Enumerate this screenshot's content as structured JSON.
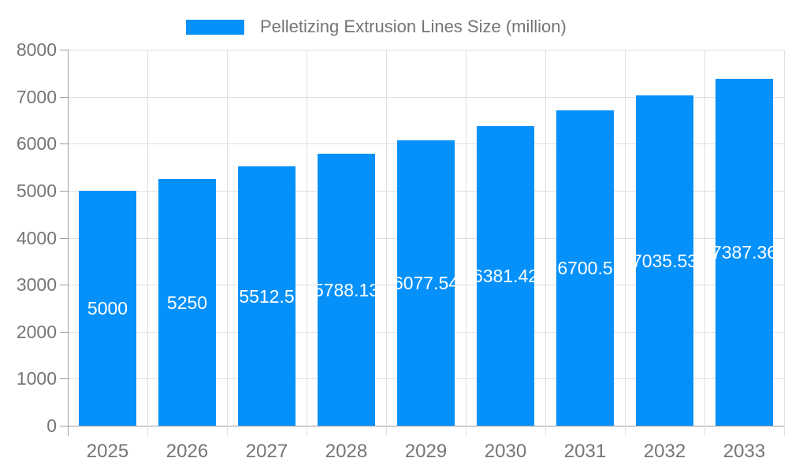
{
  "chart_data": {
    "type": "bar",
    "title": "Pelletizing Extrusion Lines Size (million)",
    "legend_position": "top",
    "grid": true,
    "categories": [
      "2025",
      "2026",
      "2027",
      "2028",
      "2029",
      "2030",
      "2031",
      "2032",
      "2033"
    ],
    "values": [
      5000,
      5250,
      5512.5,
      5788.13,
      6077.54,
      6381.42,
      6700.5,
      7035.53,
      7387.36
    ],
    "value_labels": [
      "5000",
      "5250",
      "5512.5",
      "5788.13",
      "6077.54",
      "6381.42",
      "6700.5",
      "7035.53",
      "7387.36"
    ],
    "xlabel": "",
    "ylabel": "",
    "ylim": [
      0,
      8000
    ],
    "yticks": [
      0,
      1000,
      2000,
      3000,
      4000,
      5000,
      6000,
      7000,
      8000
    ],
    "colors": {
      "bar": "#0691fa",
      "bar_value_label": "#ffffff",
      "axis_text": "#757575",
      "gridline": "#e0e0e0",
      "axis_line": "#9e9e9e",
      "background": "#ffffff"
    }
  }
}
